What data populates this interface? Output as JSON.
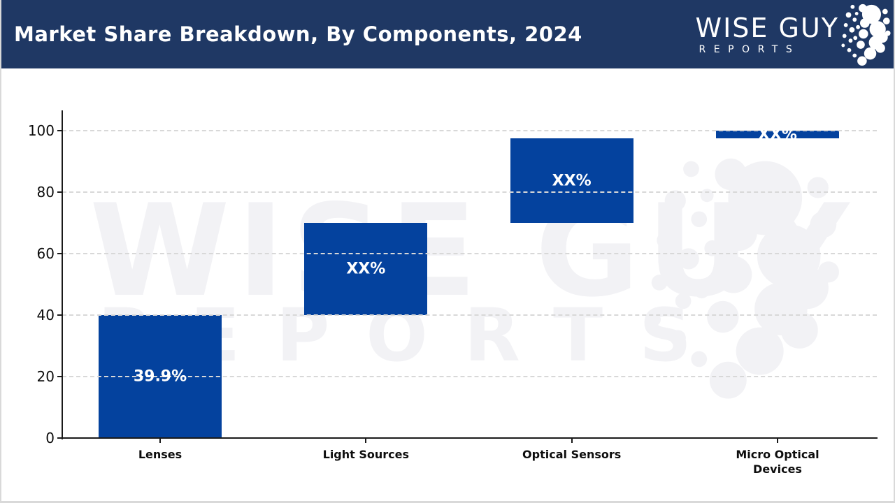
{
  "header": {
    "title": "Market Share Breakdown, By Components, 2024",
    "logo": {
      "line1": "WISE GUY",
      "line2": "REPORTS"
    }
  },
  "chart_data": {
    "type": "bar",
    "subtype": "waterfall-breakdown",
    "title": "Market Share Breakdown, By Components, 2024",
    "categories": [
      "Lenses",
      "Light Sources",
      "Optical Sensors",
      "Micro Optical Devices"
    ],
    "segment_start": [
      0,
      39.9,
      70.0,
      97.4
    ],
    "segment_end": [
      39.9,
      70.0,
      97.4,
      100.0
    ],
    "values": [
      39.9,
      30.1,
      27.4,
      2.6
    ],
    "displayed_labels": [
      "39.9%",
      "XX%",
      "XX%",
      "XX%"
    ],
    "xlabel": "",
    "ylabel": "",
    "yticks": [
      0,
      20,
      40,
      60,
      80,
      100
    ],
    "ylim": [
      0,
      104.5
    ],
    "grid": "horizontal-dashed",
    "legend": "none",
    "watermark": {
      "line1": "WISE GUY",
      "line2": "REPORTS"
    }
  },
  "colors": {
    "header_bg": "#1f3864",
    "bar": "#04429e",
    "grid": "#d8d8d8",
    "axis": "#1a1a1a",
    "frame": "#d9d9d9",
    "watermark": "#f2f2f5",
    "bar_label": "#ffffff",
    "title_text": "#ffffff"
  }
}
